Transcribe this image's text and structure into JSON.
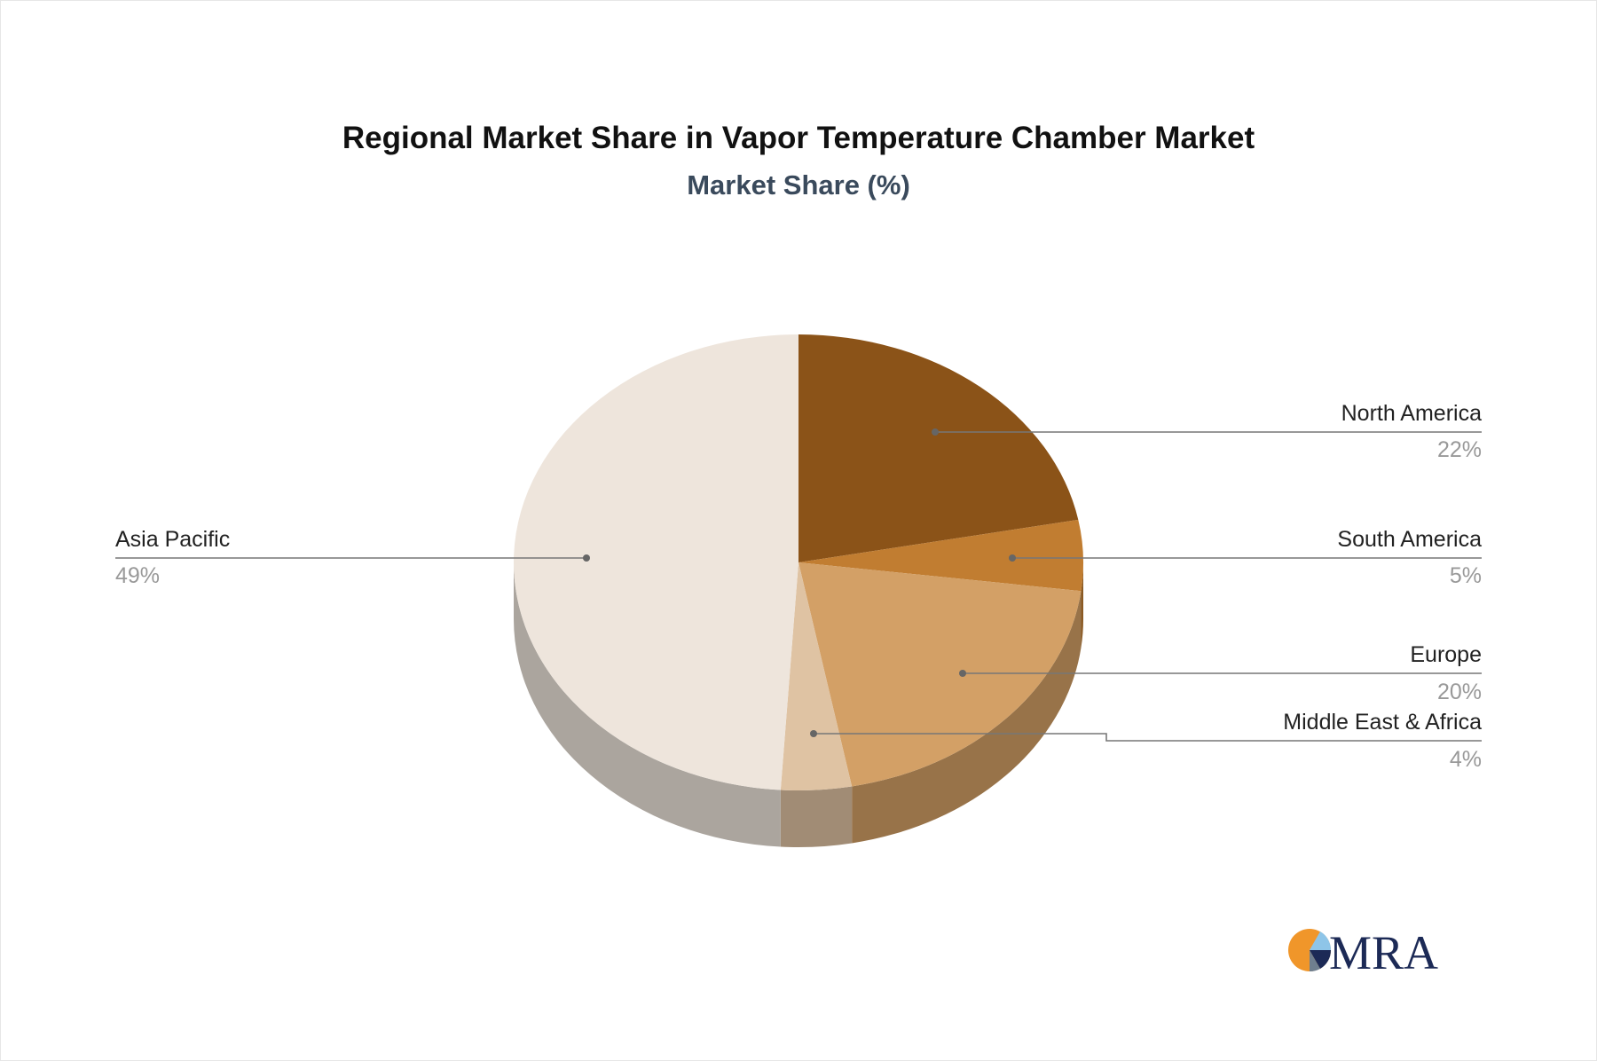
{
  "chart_data": {
    "type": "pie",
    "title": "Regional Market Share in Vapor Temperature Chamber Market",
    "subtitle": "Market Share (%)",
    "slices": [
      {
        "label": "North America",
        "value": 22,
        "value_label": "22%",
        "color": "#8b5318"
      },
      {
        "label": "South America",
        "value": 5,
        "value_label": "5%",
        "color": "#c17d31"
      },
      {
        "label": "Europe",
        "value": 20,
        "value_label": "20%",
        "color": "#d3a066"
      },
      {
        "label": "Middle East & Africa",
        "value": 4,
        "value_label": "4%",
        "color": "#dfc3a3"
      },
      {
        "label": "Asia Pacific",
        "value": 49,
        "value_label": "49%",
        "color": "#eee5dc"
      }
    ]
  },
  "logo": {
    "text": "MRA",
    "colors": {
      "orange": "#f0962a",
      "navy": "#1c2a56",
      "light_blue": "#8ec5e8"
    }
  }
}
